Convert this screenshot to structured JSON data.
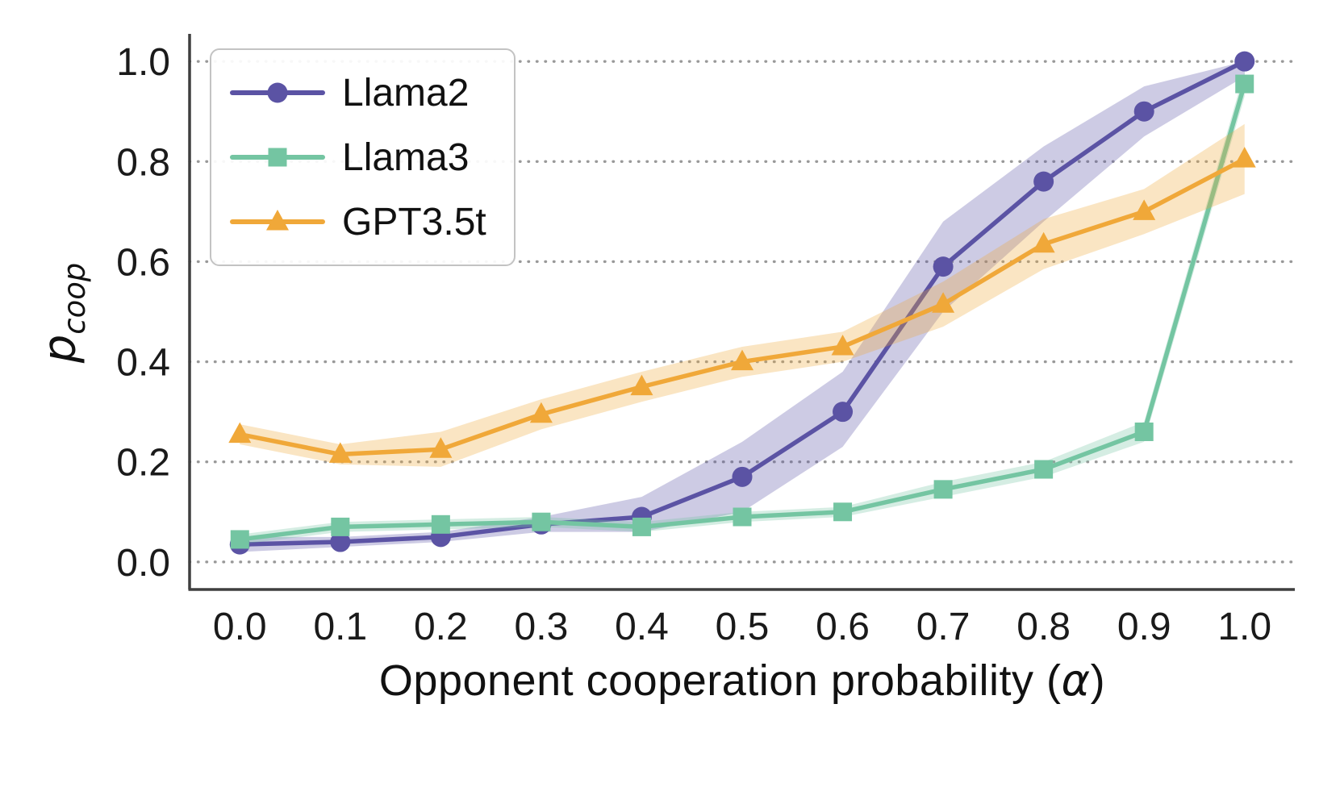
{
  "chart_data": {
    "type": "line",
    "title": "",
    "xlabel_prefix": "Opponent cooperation probability (",
    "xlabel_alpha": "α",
    "xlabel_suffix": ")",
    "ylabel_main": "p",
    "ylabel_sub": "coop",
    "x": [
      0.0,
      0.1,
      0.2,
      0.3,
      0.4,
      0.5,
      0.6,
      0.7,
      0.8,
      0.9,
      1.0
    ],
    "xticklabels": [
      "0.0",
      "0.1",
      "0.2",
      "0.3",
      "0.4",
      "0.5",
      "0.6",
      "0.7",
      "0.8",
      "0.9",
      "1.0"
    ],
    "yticks": [
      0.0,
      0.2,
      0.4,
      0.6,
      0.8,
      1.0
    ],
    "yticklabels": [
      "0.0",
      "0.2",
      "0.4",
      "0.6",
      "0.8",
      "1.0"
    ],
    "xlim": [
      -0.05,
      1.05
    ],
    "ylim": [
      -0.055,
      1.055
    ],
    "grid": "horizontal-dotted",
    "legend_position": "upper-left",
    "gridline_color": "#999999",
    "spine_color": "#3f3f3f",
    "tick_label_color": "#1a1a1a",
    "series": [
      {
        "name": "Llama2",
        "marker": "circle",
        "color": "#5b53a4",
        "band_opacity": 0.3,
        "values": [
          0.035,
          0.04,
          0.05,
          0.075,
          0.09,
          0.17,
          0.3,
          0.59,
          0.76,
          0.9,
          1.0
        ],
        "lower": [
          0.02,
          0.03,
          0.04,
          0.06,
          0.06,
          0.1,
          0.23,
          0.5,
          0.68,
          0.85,
          0.97
        ],
        "upper": [
          0.05,
          0.05,
          0.06,
          0.09,
          0.13,
          0.24,
          0.38,
          0.68,
          0.83,
          0.95,
          1.0
        ]
      },
      {
        "name": "Llama3",
        "marker": "square",
        "color": "#74c5a2",
        "band_opacity": 0.3,
        "values": [
          0.045,
          0.07,
          0.075,
          0.08,
          0.07,
          0.09,
          0.1,
          0.145,
          0.185,
          0.26,
          0.955
        ],
        "lower": [
          0.035,
          0.06,
          0.065,
          0.07,
          0.06,
          0.08,
          0.09,
          0.13,
          0.17,
          0.24,
          0.93
        ],
        "upper": [
          0.055,
          0.08,
          0.085,
          0.09,
          0.08,
          0.1,
          0.11,
          0.16,
          0.2,
          0.28,
          0.98
        ]
      },
      {
        "name": "GPT3.5t",
        "marker": "triangle",
        "color": "#f0a839",
        "band_opacity": 0.3,
        "values": [
          0.255,
          0.215,
          0.225,
          0.295,
          0.35,
          0.4,
          0.43,
          0.515,
          0.635,
          0.7,
          0.805
        ],
        "lower": [
          0.235,
          0.195,
          0.19,
          0.265,
          0.32,
          0.37,
          0.4,
          0.47,
          0.585,
          0.655,
          0.735
        ],
        "upper": [
          0.275,
          0.235,
          0.26,
          0.325,
          0.38,
          0.43,
          0.46,
          0.56,
          0.685,
          0.745,
          0.875
        ]
      }
    ]
  }
}
